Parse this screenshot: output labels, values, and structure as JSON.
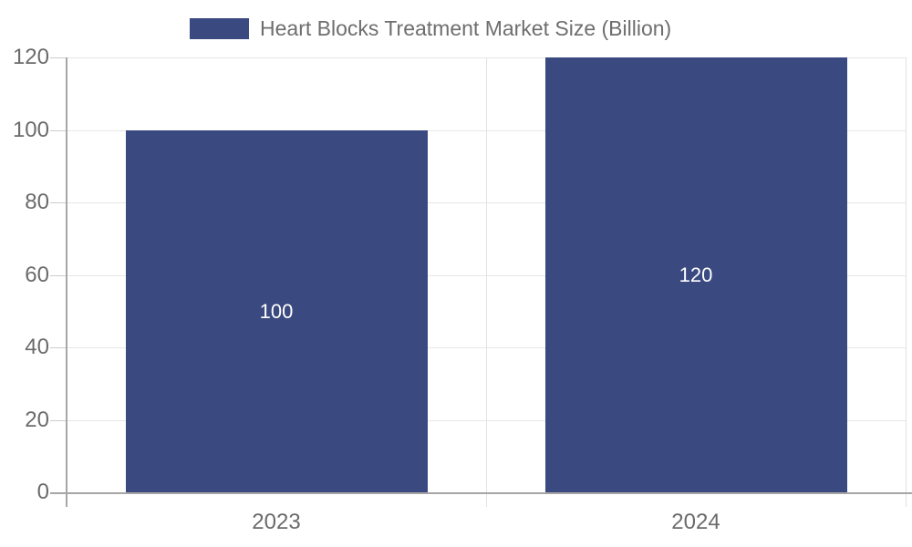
{
  "legend": {
    "label": "Heart Blocks Treatment Market Size (Billion)",
    "swatch_color": "#3a4980"
  },
  "chart_data": {
    "type": "bar",
    "title": "Heart Blocks Treatment Market Size (Billion)",
    "categories": [
      "2023",
      "2024"
    ],
    "values": [
      100,
      120
    ],
    "data_labels": [
      "100",
      "120"
    ],
    "xlabel": "",
    "ylabel": "",
    "ylim": [
      0,
      120
    ],
    "yticks": [
      0,
      20,
      40,
      60,
      80,
      100,
      120
    ],
    "ytick_labels": [
      "0",
      "20",
      "40",
      "60",
      "80",
      "100",
      "120"
    ],
    "grid": true,
    "legend_position": "top",
    "colors": {
      "bar": "#3a4980",
      "value_label": "#ffffff",
      "axis_text": "#6b6b6b",
      "legend_text": "#6e6e6e",
      "axis_line": "#a6a6a6",
      "grid_line": "#e7e7e7",
      "boundary_line": "#e2e2e2",
      "tick_line": "#cccccc",
      "background": "#ffffff"
    }
  }
}
